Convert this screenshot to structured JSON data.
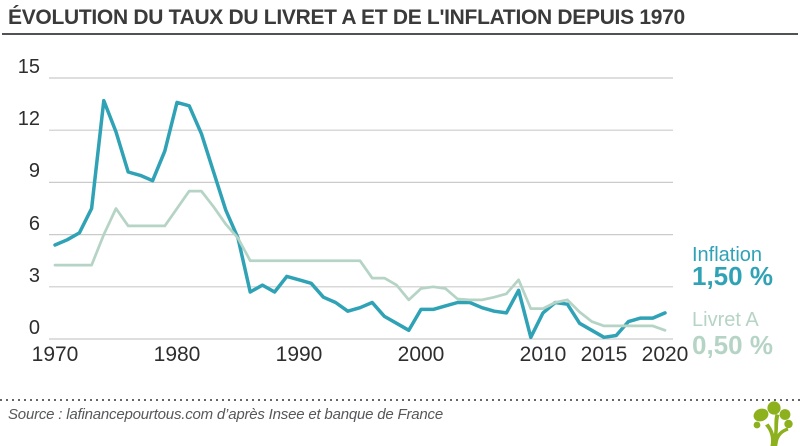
{
  "title": "ÉVOLUTION DU TAUX DU LIVRET A ET DE L'INFLATION DEPUIS 1970",
  "legend": {
    "inflation": {
      "label": "Inflation",
      "value": "1,50 %"
    },
    "livret_a": {
      "label": "Livret A",
      "value": "0,50 %"
    }
  },
  "footer": {
    "source": "Source : lafinancepourtous.com d’après Insee et banque de France",
    "logo": "lafinancepourtous-tree-logo"
  },
  "colors": {
    "inflation": "#2fa2b6",
    "livret_a": "#b6d4c5",
    "gridline": "#cbcbcb",
    "tick_text": "#2e2e2e",
    "title_text": "#3a3a3a",
    "underline": "#515254",
    "source_text": "#57585a",
    "logo_green": "#8cb11d"
  },
  "chart_data": {
    "type": "line",
    "title": "ÉVOLUTION DU TAUX DU LIVRET A ET DE L'INFLATION DEPUIS 1970",
    "xlabel": "",
    "ylabel": "",
    "unit": "%",
    "xlim": [
      1970,
      2020
    ],
    "ylim": [
      0,
      15
    ],
    "grid": "horizontal",
    "legend_position": "right",
    "y_ticks": [
      0,
      3,
      6,
      9,
      12,
      15
    ],
    "x_ticks": [
      1970,
      1980,
      1990,
      2000,
      2010,
      2015,
      2020
    ],
    "x": [
      1970,
      1971,
      1972,
      1973,
      1974,
      1975,
      1976,
      1977,
      1978,
      1979,
      1980,
      1981,
      1982,
      1983,
      1984,
      1985,
      1986,
      1987,
      1988,
      1989,
      1990,
      1991,
      1992,
      1993,
      1994,
      1995,
      1996,
      1997,
      1998,
      1999,
      2000,
      2001,
      2002,
      2003,
      2004,
      2005,
      2006,
      2007,
      2008,
      2009,
      2010,
      2011,
      2012,
      2013,
      2014,
      2015,
      2016,
      2017,
      2018,
      2019,
      2020
    ],
    "series": [
      {
        "name": "Inflation",
        "color": "#2fa2b6",
        "current_value": "1,50 %",
        "values": [
          5.4,
          5.7,
          6.1,
          7.5,
          13.7,
          11.9,
          9.6,
          9.4,
          9.1,
          10.8,
          13.6,
          13.4,
          11.8,
          9.6,
          7.4,
          5.8,
          2.7,
          3.1,
          2.7,
          3.6,
          3.4,
          3.2,
          2.4,
          2.1,
          1.6,
          1.8,
          2.1,
          1.3,
          0.9,
          0.5,
          1.7,
          1.7,
          1.9,
          2.1,
          2.1,
          1.8,
          1.6,
          1.5,
          2.8,
          0.1,
          1.5,
          2.1,
          2.0,
          0.9,
          0.5,
          0.1,
          0.2,
          1.0,
          1.2,
          1.2,
          1.5
        ]
      },
      {
        "name": "Livret A",
        "color": "#b6d4c5",
        "current_value": "0,50 %",
        "values": [
          4.25,
          4.25,
          4.25,
          4.25,
          6.0,
          7.5,
          6.5,
          6.5,
          6.5,
          6.5,
          7.5,
          8.5,
          8.5,
          7.6,
          6.6,
          5.8,
          4.5,
          4.5,
          4.5,
          4.5,
          4.5,
          4.5,
          4.5,
          4.5,
          4.5,
          4.5,
          3.5,
          3.5,
          3.1,
          2.25,
          2.9,
          3.0,
          2.9,
          2.3,
          2.25,
          2.25,
          2.4,
          2.6,
          3.4,
          1.75,
          1.75,
          2.1,
          2.25,
          1.55,
          1.0,
          0.75,
          0.75,
          0.75,
          0.75,
          0.75,
          0.5
        ]
      }
    ]
  }
}
